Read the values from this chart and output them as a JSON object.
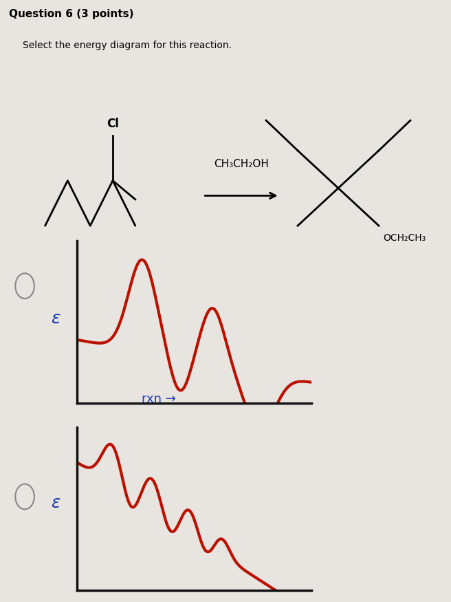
{
  "title": "Question 6 (3 points)",
  "subtitle": "Select the energy diagram for this reaction.",
  "bg_color": "#e8e4e0",
  "curve_color": "#bb1100",
  "axis_color": "#111111",
  "label_color_blue": "#1a3ab5",
  "radio_color": "#888888",
  "reaction_reagent": "CH₃CH₂OH",
  "product_label": "OCH₂CH₃",
  "ylabel": "ε",
  "xlabel": "rxn →"
}
